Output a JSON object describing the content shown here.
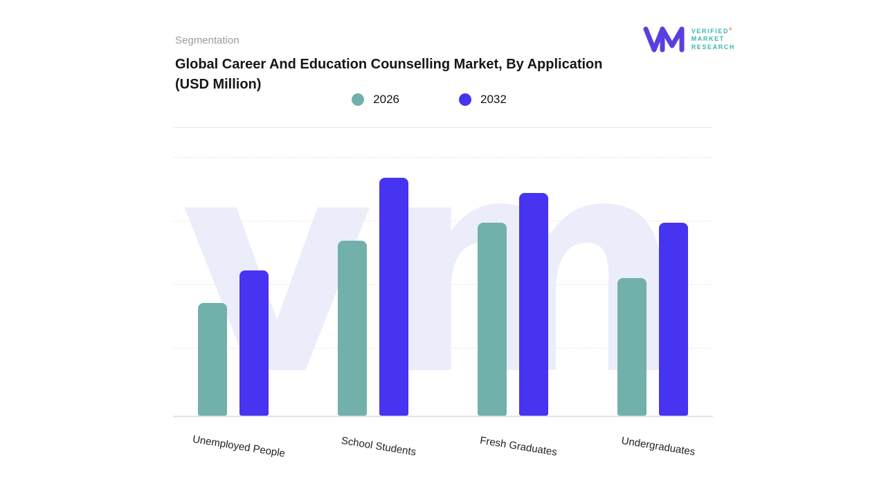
{
  "header": {
    "eyebrow": "Segmentation",
    "title_line1": "Global Career And Education Counselling Market, By Application",
    "title_line2": "(USD Million)"
  },
  "logo": {
    "line1": "VERIFIED",
    "registered": "®",
    "line2": "MARKET",
    "line3": "RESEARCH"
  },
  "watermark_text": "vm",
  "colors": {
    "series_2026": "#72b0ab",
    "series_2032": "#4634f0",
    "watermark": "#ecedfa",
    "logo_purple": "#5a3fe0",
    "logo_teal": "#38b6ae",
    "gridline": "#e8e8ee",
    "baseline": "#e3e3e3",
    "title_text": "#161616",
    "eyebrow_text": "#9b9b9b"
  },
  "chart_data": {
    "type": "bar",
    "title": "Global Career And Education Counselling Market, By Application (USD Million)",
    "categories": [
      "Unemployed People",
      "School Students",
      "Fresh Graduates",
      "Undergraduates"
    ],
    "series": [
      {
        "name": "2026",
        "color": "#72b0ab",
        "values": [
          45,
          70,
          77,
          55
        ]
      },
      {
        "name": "2032",
        "color": "#4634f0",
        "values": [
          58,
          95,
          89,
          77
        ]
      }
    ],
    "xlabel": "",
    "ylabel": "",
    "ylim": [
      0,
      100
    ],
    "grid": "horizontal-dashed",
    "legend_position": "top-center",
    "bar_corner": "rounded-top",
    "x_tick_rotation_deg": 9
  }
}
